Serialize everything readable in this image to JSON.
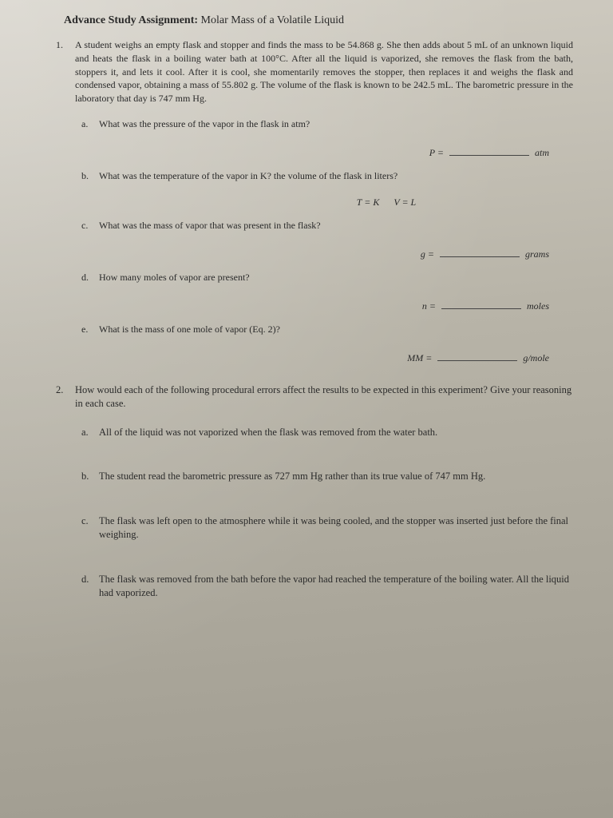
{
  "title_bold": "Advance Study Assignment:",
  "title_rest": " Molar Mass of a Volatile Liquid",
  "q1_num": "1.",
  "q1_text": "A student weighs an empty flask and stopper and finds the mass to be 54.868 g. She then adds about 5 mL of an unknown liquid and heats the flask in a boiling water bath at 100°C. After all the liquid is vaporized, she removes the flask from the bath, stoppers it, and lets it cool. After it is cool, she momentarily removes the stopper, then replaces it and weighs the flask and condensed vapor, obtaining a mass of 55.802 g. The volume of the flask is known to be 242.5 mL. The barometric pressure in the laboratory that day is 747 mm Hg.",
  "a_letter": "a.",
  "a_text": "What was the pressure of the vapor in the flask in atm?",
  "a_answer_var": "P =",
  "a_answer_unit": "atm",
  "b_letter": "b.",
  "b_text": "What was the temperature of the vapor in K? the volume of the flask in liters?",
  "b_answer_var1": "T =",
  "b_answer_unit1": "K",
  "b_answer_var2": "V =",
  "b_answer_unit2": "L",
  "c_letter": "c.",
  "c_text": "What was the mass of vapor that was present in the flask?",
  "c_answer_var": "g =",
  "c_answer_unit": "grams",
  "d_letter": "d.",
  "d_text": "How many moles of vapor are present?",
  "d_answer_var": "n =",
  "d_answer_unit": "moles",
  "e_letter": "e.",
  "e_text": "What is the mass of one mole of vapor (Eq. 2)?",
  "e_answer_var": "MM =",
  "e_answer_unit": "g/mole",
  "q2_num": "2.",
  "q2_text": "How would each of the following procedural errors affect the results to be expected in this experiment? Give your reasoning in each case.",
  "q2a_letter": "a.",
  "q2a_text": "All of the liquid was not vaporized when the flask was removed from the water bath.",
  "q2b_letter": "b.",
  "q2b_text": "The student read the barometric pressure as 727 mm Hg rather than its true value of 747 mm Hg.",
  "q2c_letter": "c.",
  "q2c_text": "The flask was left open to the atmosphere while it was being cooled, and the stopper was inserted just before the final weighing.",
  "q2d_letter": "d.",
  "q2d_text": "The flask was removed from the bath before the vapor had reached the temperature of the boiling water. All the liquid had vaporized."
}
